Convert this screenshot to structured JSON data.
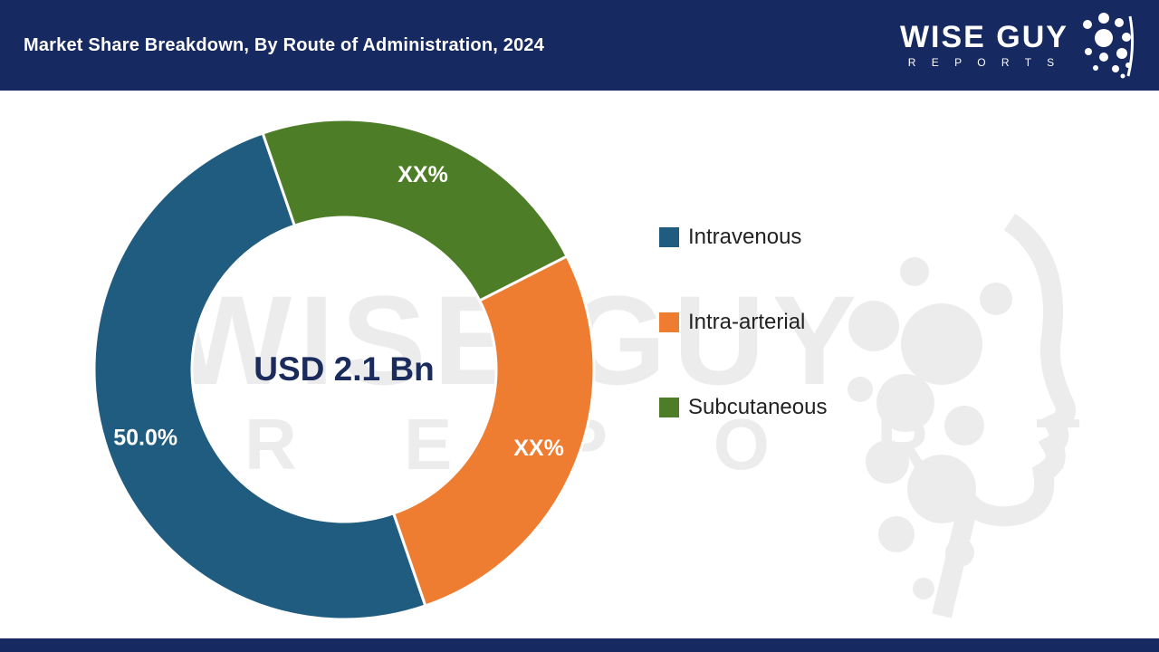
{
  "theme": {
    "brand_navy": "#162960",
    "center_text_color": "#1a2b5c",
    "watermark_gray": "#ececec"
  },
  "header": {
    "title": "Market Share Breakdown, By Route of Administration, 2024",
    "logo": {
      "line1": "WISE GUY",
      "line2": "R E P O R T S"
    }
  },
  "watermark": {
    "line1": "WISE GUY",
    "line2": "R E P O R T S"
  },
  "chart_data": {
    "type": "donut",
    "title": "Market Share Breakdown, By Route of Administration, 2024",
    "center_label": "USD 2.1 Bn",
    "start_angle_deg": 161,
    "slices": [
      {
        "name": "Intravenous",
        "value": 50.0,
        "label": "50.0%",
        "color": "#1f5c80"
      },
      {
        "name": "Subcutaneous",
        "value": 22.8,
        "label": "XX%",
        "color": "#4e7d27"
      },
      {
        "name": "Intra-arterial",
        "value": 27.2,
        "label": "XX%",
        "color": "#ee7d31"
      }
    ],
    "legend": [
      {
        "name": "Intravenous",
        "color": "#1f5c80"
      },
      {
        "name": "Intra-arterial",
        "color": "#ee7d31"
      },
      {
        "name": "Subcutaneous",
        "color": "#4e7d27"
      }
    ]
  }
}
